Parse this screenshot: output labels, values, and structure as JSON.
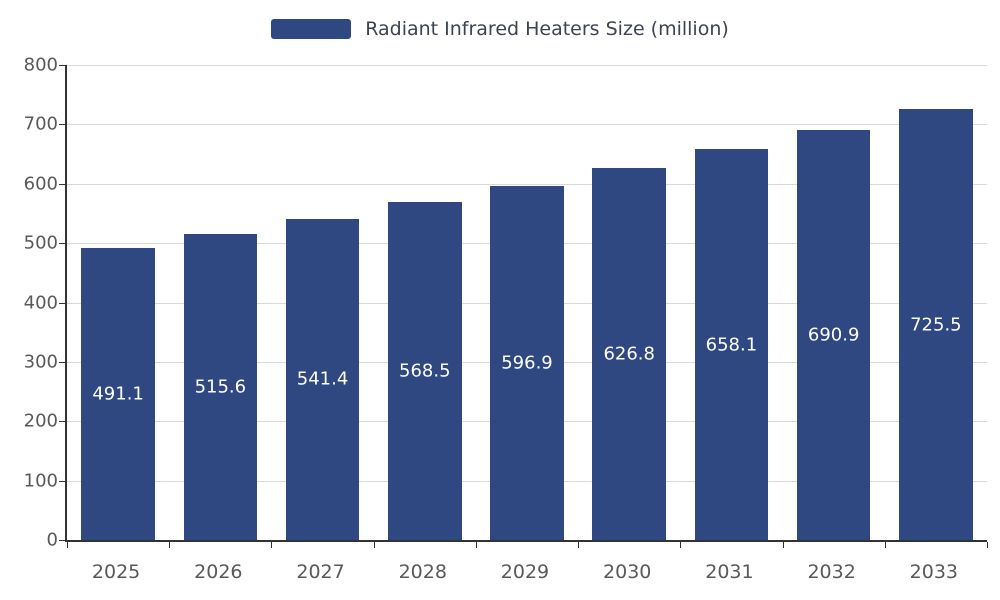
{
  "chart_data": {
    "type": "bar",
    "title": "Radiant Infrared Heaters Size (million)",
    "categories": [
      "2025",
      "2026",
      "2027",
      "2028",
      "2029",
      "2030",
      "2031",
      "2032",
      "2033"
    ],
    "values": [
      491.1,
      515.6,
      541.4,
      568.5,
      596.9,
      626.8,
      658.1,
      690.9,
      725.5
    ],
    "series": [
      {
        "name": "Radiant Infrared Heaters Size (million)",
        "values": [
          491.1,
          515.6,
          541.4,
          568.5,
          596.9,
          626.8,
          658.1,
          690.9,
          725.5
        ]
      }
    ],
    "xlabel": "",
    "ylabel": "",
    "ylim": [
      0,
      800
    ],
    "y_tick_step": 100,
    "y_tick_labels": [
      "0",
      "100",
      "200",
      "300",
      "400",
      "500",
      "600",
      "700",
      "800"
    ],
    "grid": true,
    "legend_position": "top-center",
    "colors": {
      "bar": "#2f4882",
      "value_label": "#ffffff",
      "axis_tick_label": "#595959",
      "gridline": "#d9d9d9",
      "axis_line": "#333333",
      "legend_text": "#3d4350"
    }
  }
}
